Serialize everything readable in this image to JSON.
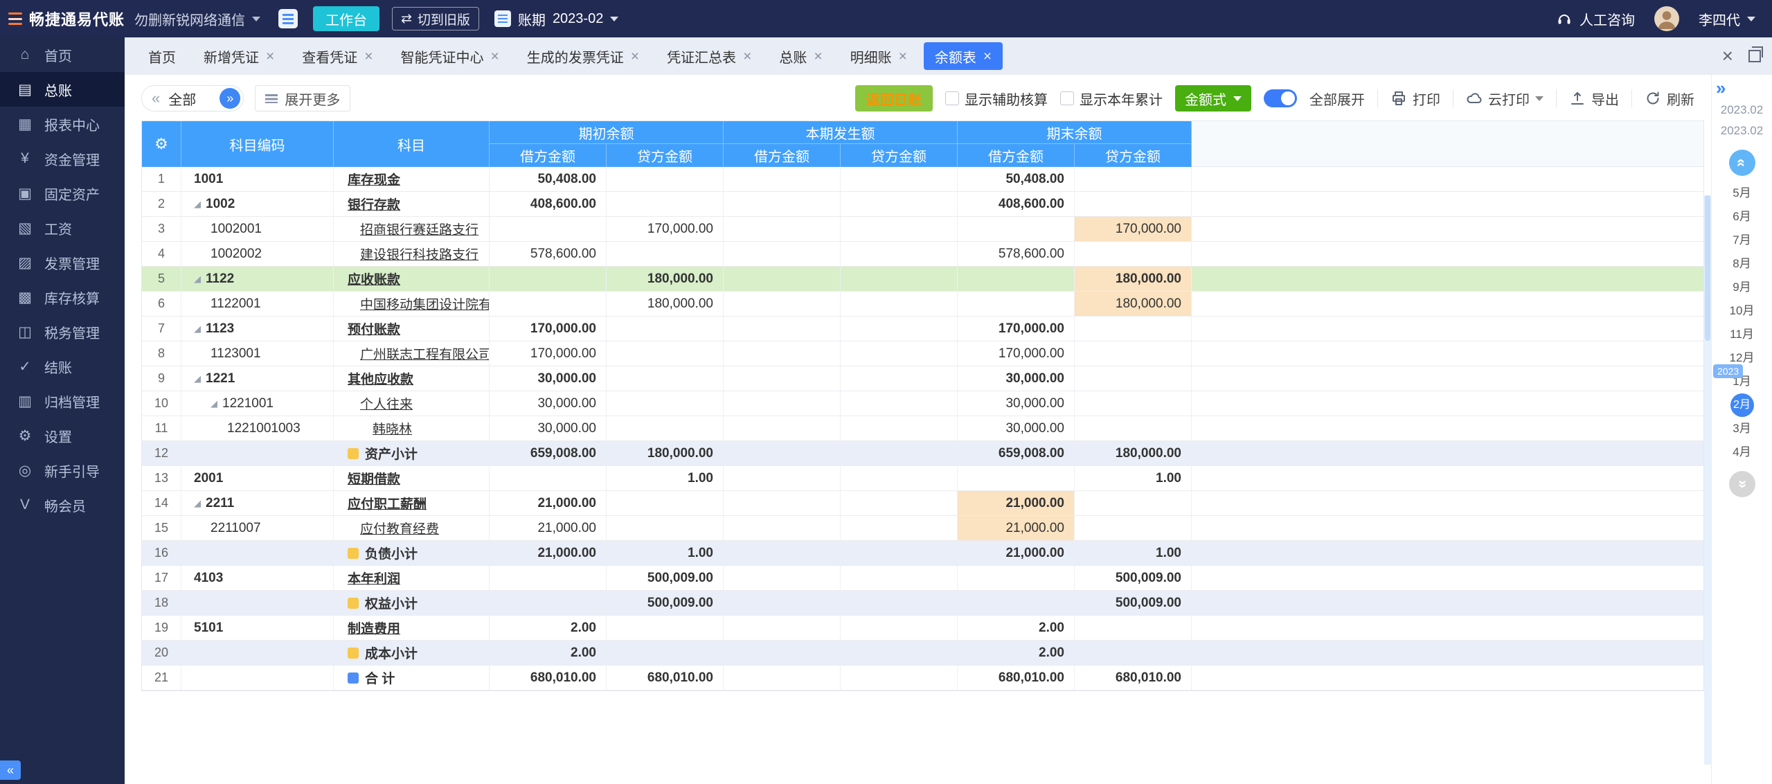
{
  "topbar": {
    "logo": "畅捷通易代账",
    "company": "勿删新锐网络通信",
    "workbench": "工作台",
    "switch_old": "切到旧版",
    "period_label": "账期",
    "period_value": "2023-02",
    "support": "人工咨询",
    "user": "李四代"
  },
  "tabs": {
    "items": [
      {
        "label": "首页",
        "closable": false,
        "active": false
      },
      {
        "label": "新增凭证",
        "closable": true,
        "active": false
      },
      {
        "label": "查看凭证",
        "closable": true,
        "active": false
      },
      {
        "label": "智能凭证中心",
        "closable": true,
        "active": false
      },
      {
        "label": "生成的发票凭证",
        "closable": true,
        "active": false
      },
      {
        "label": "凭证汇总表",
        "closable": true,
        "active": false
      },
      {
        "label": "总账",
        "closable": true,
        "active": false
      },
      {
        "label": "明细账",
        "closable": true,
        "active": false
      },
      {
        "label": "余额表",
        "closable": true,
        "active": true
      }
    ]
  },
  "sidebar": {
    "items": [
      {
        "label": "首页",
        "icon": "home",
        "glyph": "⌂",
        "active": false
      },
      {
        "label": "总账",
        "icon": "ledger",
        "glyph": "▤",
        "active": true
      },
      {
        "label": "报表中心",
        "icon": "report-center",
        "glyph": "▦",
        "active": false
      },
      {
        "label": "资金管理",
        "icon": "funds",
        "glyph": "¥",
        "active": false
      },
      {
        "label": "固定资产",
        "icon": "fixed-assets",
        "glyph": "▣",
        "active": false
      },
      {
        "label": "工资",
        "icon": "salary",
        "glyph": "▧",
        "active": false
      },
      {
        "label": "发票管理",
        "icon": "invoice",
        "glyph": "▨",
        "active": false
      },
      {
        "label": "库存核算",
        "icon": "inventory",
        "glyph": "▩",
        "active": false
      },
      {
        "label": "税务管理",
        "icon": "tax",
        "glyph": "◫",
        "active": false
      },
      {
        "label": "结账",
        "icon": "closing",
        "glyph": "✓",
        "active": false
      },
      {
        "label": "归档管理",
        "icon": "archive",
        "glyph": "▥",
        "active": false
      },
      {
        "label": "设置",
        "icon": "settings",
        "glyph": "⚙",
        "active": false
      },
      {
        "label": "新手引导",
        "icon": "guide",
        "glyph": "◎",
        "active": false
      },
      {
        "label": "畅会员",
        "icon": "member",
        "glyph": "V",
        "active": false
      }
    ]
  },
  "toolbar": {
    "filter_all": "全部",
    "expand_more": "展开更多",
    "back_daily": "返回日账",
    "show_aux": "显示辅助核算",
    "show_ytd": "显示本年累计",
    "amount_style": "金额式",
    "expand_all": "全部展开",
    "print": "打印",
    "cloud_print": "云打印",
    "export": "导出",
    "refresh": "刷新"
  },
  "monthbar": {
    "period_top": "2023.02",
    "period_bottom": "2023.02",
    "year_badge": "2023",
    "months": [
      "5月",
      "6月",
      "7月",
      "8月",
      "9月",
      "10月",
      "11月",
      "12月",
      "1月",
      "2月",
      "3月",
      "4月"
    ],
    "active_month": "2月"
  },
  "table": {
    "headers": {
      "code": "科目编码",
      "subject": "科目",
      "qichu": "期初余额",
      "benqi": "本期发生额",
      "qimo": "期末余额",
      "debit": "借方金额",
      "credit": "贷方金额"
    },
    "rows": [
      {
        "n": 1,
        "code": "1001",
        "level": 0,
        "expandable": false,
        "bold": true,
        "name": "库存现金",
        "values": [
          "50,408.00",
          "",
          "",
          "",
          "50,408.00",
          ""
        ]
      },
      {
        "n": 2,
        "code": "1002",
        "level": 0,
        "expandable": true,
        "bold": true,
        "name": "银行存款",
        "values": [
          "408,600.00",
          "",
          "",
          "",
          "408,600.00",
          ""
        ]
      },
      {
        "n": 3,
        "code": "1002001",
        "level": 1,
        "expandable": false,
        "bold": false,
        "name": "招商银行赛廷路支行",
        "values": [
          "",
          "170,000.00",
          "",
          "",
          "",
          "170,000.00"
        ],
        "orange": [
          5
        ]
      },
      {
        "n": 4,
        "code": "1002002",
        "level": 1,
        "expandable": false,
        "bold": false,
        "name": "建设银行科技路支行",
        "values": [
          "578,600.00",
          "",
          "",
          "",
          "578,600.00",
          ""
        ]
      },
      {
        "n": 5,
        "code": "1122",
        "level": 0,
        "expandable": true,
        "bold": true,
        "selected": true,
        "name": "应收账款",
        "values": [
          "",
          "180,000.00",
          "",
          "",
          "",
          "180,000.00"
        ],
        "orange": [
          5
        ]
      },
      {
        "n": 6,
        "code": "1122001",
        "level": 1,
        "expandable": false,
        "bold": false,
        "name": "中国移动集团设计院有限公司划",
        "values": [
          "",
          "180,000.00",
          "",
          "",
          "",
          "180,000.00"
        ],
        "orange": [
          5
        ]
      },
      {
        "n": 7,
        "code": "1123",
        "level": 0,
        "expandable": true,
        "bold": true,
        "name": "预付账款",
        "values": [
          "170,000.00",
          "",
          "",
          "",
          "170,000.00",
          ""
        ]
      },
      {
        "n": 8,
        "code": "1123001",
        "level": 1,
        "expandable": false,
        "bold": false,
        "name": "广州联志工程有限公司",
        "values": [
          "170,000.00",
          "",
          "",
          "",
          "170,000.00",
          ""
        ]
      },
      {
        "n": 9,
        "code": "1221",
        "level": 0,
        "expandable": true,
        "bold": true,
        "name": "其他应收款",
        "values": [
          "30,000.00",
          "",
          "",
          "",
          "30,000.00",
          ""
        ]
      },
      {
        "n": 10,
        "code": "1221001",
        "level": 1,
        "expandable": true,
        "bold": false,
        "name": "个人往来",
        "values": [
          "30,000.00",
          "",
          "",
          "",
          "30,000.00",
          ""
        ]
      },
      {
        "n": 11,
        "code": "1221001003",
        "level": 2,
        "expandable": false,
        "bold": false,
        "name": "韩晓林",
        "values": [
          "30,000.00",
          "",
          "",
          "",
          "30,000.00",
          ""
        ]
      },
      {
        "n": 12,
        "code": "",
        "kind": "subtotal",
        "bold": true,
        "name": "资产小计",
        "values": [
          "659,008.00",
          "180,000.00",
          "",
          "",
          "659,008.00",
          "180,000.00"
        ]
      },
      {
        "n": 13,
        "code": "2001",
        "level": 0,
        "expandable": false,
        "bold": true,
        "name": "短期借款",
        "values": [
          "",
          "1.00",
          "",
          "",
          "",
          "1.00"
        ]
      },
      {
        "n": 14,
        "code": "2211",
        "level": 0,
        "expandable": true,
        "bold": true,
        "name": "应付职工薪酬",
        "values": [
          "21,000.00",
          "",
          "",
          "",
          "21,000.00",
          ""
        ],
        "orange": [
          4
        ]
      },
      {
        "n": 15,
        "code": "2211007",
        "level": 1,
        "expandable": false,
        "bold": false,
        "name": "应付教育经费",
        "values": [
          "21,000.00",
          "",
          "",
          "",
          "21,000.00",
          ""
        ],
        "orange": [
          4
        ]
      },
      {
        "n": 16,
        "code": "",
        "kind": "subtotal",
        "bold": true,
        "name": "负债小计",
        "values": [
          "21,000.00",
          "1.00",
          "",
          "",
          "21,000.00",
          "1.00"
        ]
      },
      {
        "n": 17,
        "code": "4103",
        "level": 0,
        "expandable": false,
        "bold": true,
        "name": "本年利润",
        "values": [
          "",
          "500,009.00",
          "",
          "",
          "",
          "500,009.00"
        ]
      },
      {
        "n": 18,
        "code": "",
        "kind": "subtotal",
        "bold": true,
        "name": "权益小计",
        "values": [
          "",
          "500,009.00",
          "",
          "",
          "",
          "500,009.00"
        ]
      },
      {
        "n": 19,
        "code": "5101",
        "level": 0,
        "expandable": false,
        "bold": true,
        "name": "制造费用",
        "values": [
          "2.00",
          "",
          "",
          "",
          "2.00",
          ""
        ]
      },
      {
        "n": 20,
        "code": "",
        "kind": "subtotal",
        "bold": true,
        "name": "成本小计",
        "values": [
          "2.00",
          "",
          "",
          "",
          "2.00",
          ""
        ]
      },
      {
        "n": 21,
        "code": "",
        "kind": "total",
        "bold": true,
        "name": "合 计",
        "values": [
          "680,010.00",
          "680,010.00",
          "",
          "",
          "680,010.00",
          "680,010.00"
        ]
      }
    ]
  },
  "icons": {
    "gear": "⚙",
    "close_all": "×",
    "collapse_right": "»",
    "collapse_left": "«",
    "pill_left": "«",
    "pill_go": "»",
    "chevron_double": "«",
    "swap": "⇄"
  },
  "colors": {
    "accent_blue": "#3b7cfa",
    "header_blue": "#41a0fc",
    "selected_green": "#d8efca",
    "warn_orange_bg": "#fbe2c0",
    "subtotal_bg": "#e9eef8",
    "green_button": "#49ae0f",
    "daily_button_bg": "#8cc63f",
    "daily_button_text": "#ff9100",
    "topbar_navy": "#212a52"
  }
}
